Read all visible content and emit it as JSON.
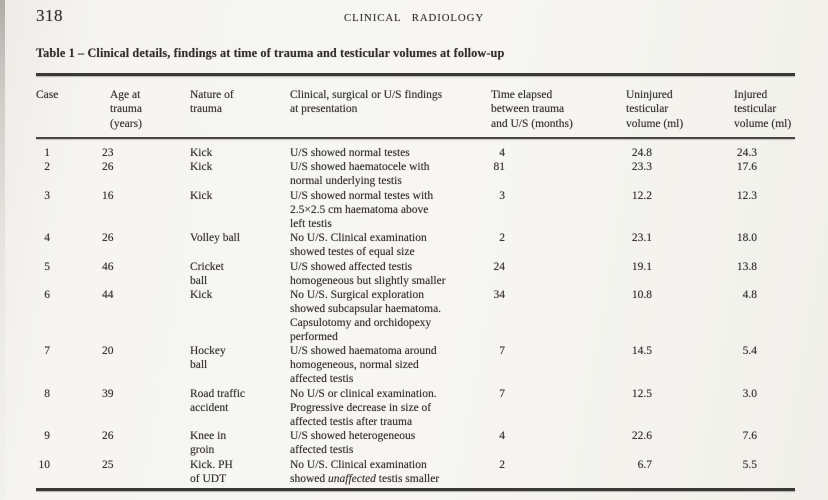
{
  "page": {
    "page_number": "318",
    "running_head": "CLINICAL RADIOLOGY"
  },
  "table": {
    "title": "Table 1 – Clinical details, findings at time of trauma and testicular volumes at follow-up",
    "columns": {
      "case": "Case",
      "age": "Age at\ntrauma\n(years)",
      "nature": "Nature of\ntrauma",
      "findings": "Clinical, surgical or U/S findings\nat presentation",
      "time_elapsed": "Time elapsed\nbetween trauma\nand U/S (months)",
      "uninjured_volume": "Uninjured\ntesticular\nvolume (ml)",
      "injured_volume": "Injured\ntesticular\nvolume (ml)"
    },
    "rows": [
      {
        "case": "1",
        "age": "23",
        "nature": "Kick",
        "findings": "U/S showed normal testes",
        "time_elapsed": "4",
        "uninjured_volume": "24.8",
        "injured_volume": "24.3"
      },
      {
        "case": "2",
        "age": "26",
        "nature": "Kick",
        "findings": "U/S showed haematocele with\nnormal underlying testis",
        "time_elapsed": "81",
        "uninjured_volume": "23.3",
        "injured_volume": "17.6"
      },
      {
        "case": "3",
        "age": "16",
        "nature": "Kick",
        "findings": "U/S showed normal testes with\n2.5×2.5 cm haematoma above\nleft testis",
        "time_elapsed": "3",
        "uninjured_volume": "12.2",
        "injured_volume": "12.3"
      },
      {
        "case": "4",
        "age": "26",
        "nature": "Volley ball",
        "findings": "No U/S. Clinical examination\nshowed testes of equal size",
        "time_elapsed": "2",
        "uninjured_volume": "23.1",
        "injured_volume": "18.0"
      },
      {
        "case": "5",
        "age": "46",
        "nature": "Cricket\nball",
        "findings": "U/S showed affected testis\nhomogeneous but slightly smaller",
        "time_elapsed": "24",
        "uninjured_volume": "19.1",
        "injured_volume": "13.8"
      },
      {
        "case": "6",
        "age": "44",
        "nature": "Kick",
        "findings": "No U/S. Surgical exploration\nshowed subcapsular haematoma.\nCapsulotomy and orchidopexy\nperformed",
        "time_elapsed": "34",
        "uninjured_volume": "10.8",
        "injured_volume": "4.8"
      },
      {
        "case": "7",
        "age": "20",
        "nature": "Hockey\nball",
        "findings": "U/S showed haematoma around\nhomogeneous, normal sized\naffected testis",
        "time_elapsed": "7",
        "uninjured_volume": "14.5",
        "injured_volume": "5.4"
      },
      {
        "case": "8",
        "age": "39",
        "nature": "Road traffic\naccident",
        "findings": "No U/S or clinical examination.\nProgressive decrease in size of\naffected testis after trauma",
        "time_elapsed": "7",
        "uninjured_volume": "12.5",
        "injured_volume": "3.0"
      },
      {
        "case": "9",
        "age": "26",
        "nature": "Knee in\ngroin",
        "findings": "U/S showed heterogeneous\naffected testis",
        "time_elapsed": "4",
        "uninjured_volume": "22.6",
        "injured_volume": "7.6"
      },
      {
        "case": "10",
        "age": "25",
        "nature": "Kick. PH\nof UDT",
        "findings": "No U/S. Clinical examination\nshowed *unaffected* testis smaller",
        "time_elapsed": "2",
        "uninjured_volume": "6.7",
        "injured_volume": "5.5"
      }
    ]
  }
}
